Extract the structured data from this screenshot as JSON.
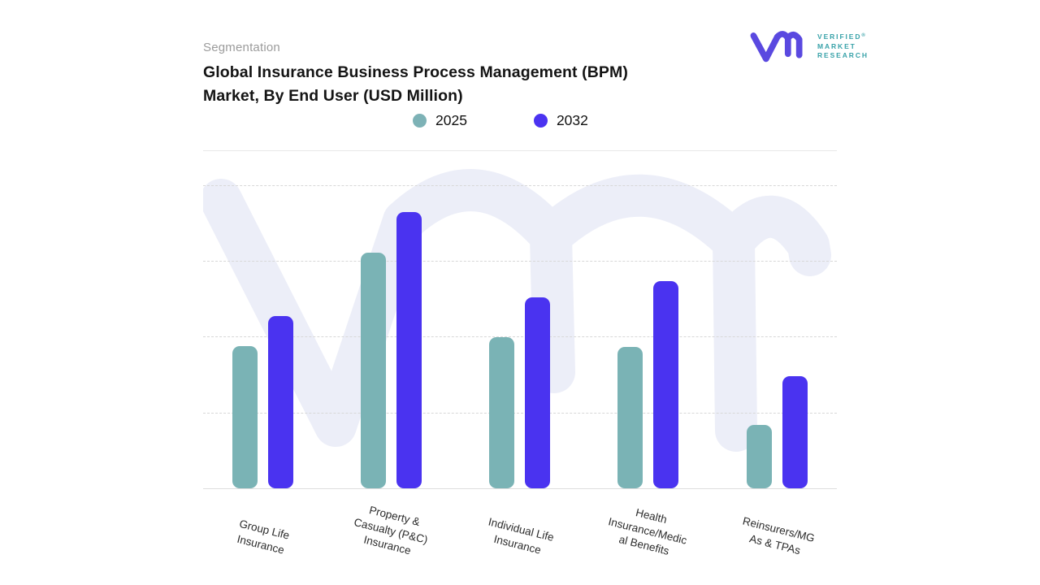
{
  "header": {
    "eyebrow": "Segmentation",
    "title_line1": "Global Insurance Business Process Management (BPM)",
    "title_line2": "Market, By End User (USD Million)"
  },
  "legend": [
    {
      "label": "2025",
      "color": "#7db2b6"
    },
    {
      "label": "2032",
      "color": "#4b33f1"
    }
  ],
  "logo": {
    "name": "Verified Market Research",
    "glyph": "vmr-monogram",
    "glyph_color": "#5a49e0",
    "text_color": "#38a2a9",
    "line1": "VERIFIED",
    "registered": "®",
    "line2": "MARKET",
    "line3": "RESEARCH"
  },
  "chart_data": {
    "type": "bar",
    "title": "Global Insurance Business Process Management (BPM) Market, By End User (USD Million)",
    "xlabel": "",
    "ylabel": "",
    "value_axis": {
      "labeled": false,
      "note": "No numeric ticks shown; values estimated relative to top gridline = 100",
      "range": [
        0,
        100
      ],
      "gridline_count": 4
    },
    "grid": "horizontal-dashed",
    "legend_position": "top-center",
    "categories": [
      "Group Life Insurance",
      "Property & Casualty (P&C) Insurance",
      "Individual Life Insurance",
      "Health Insurance/Medical Benefits",
      "Reinsurers/MGAs & TPAs"
    ],
    "category_label_lines": [
      [
        "Group Life",
        "Insurance"
      ],
      [
        "Property &",
        "Casualty (P&C)",
        "Insurance"
      ],
      [
        "Individual Life",
        "Insurance"
      ],
      [
        "Health",
        "Insurance/Medic",
        "al Benefits"
      ],
      [
        "Reinsurers/MG",
        "As & TPAs"
      ]
    ],
    "series": [
      {
        "name": "2025",
        "color": "#7ab3b5",
        "values": [
          46.7,
          77.4,
          49.6,
          46.4,
          20.8
        ]
      },
      {
        "name": "2032",
        "color": "#4a33f0",
        "values": [
          56.5,
          90.7,
          62.7,
          68.0,
          36.8
        ]
      }
    ],
    "watermark": "vmr-monogram-light"
  }
}
